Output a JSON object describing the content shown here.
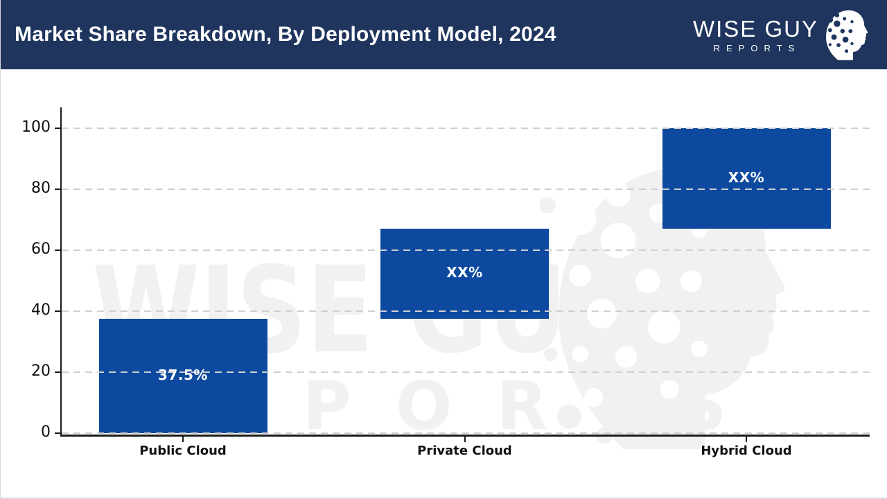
{
  "header": {
    "title": "Market Share Breakdown, By Deployment Model, 2024",
    "logo": {
      "line1": "WISE GUY",
      "line2": "REPORTS"
    }
  },
  "watermark": {
    "line1": "WISE GUY",
    "line2": "REPORTS"
  },
  "chart_data": {
    "type": "bar",
    "subtype": "floating-segment-waterfall",
    "title": "Market Share Breakdown, By Deployment Model, 2024",
    "categories": [
      "Public Cloud",
      "Private Cloud",
      "Hybrid Cloud"
    ],
    "segments": [
      {
        "category": "Public Cloud",
        "start": 0,
        "end": 37.5,
        "label": "37.5%"
      },
      {
        "category": "Private Cloud",
        "start": 37.5,
        "end": 67,
        "label": "XX%"
      },
      {
        "category": "Hybrid Cloud",
        "start": 67,
        "end": 100,
        "label": "XX%"
      }
    ],
    "xlabel": "",
    "ylabel": "",
    "ylim": [
      0,
      100
    ],
    "yticks": [
      0,
      20,
      40,
      60,
      80,
      100
    ],
    "grid": "horizontal-dashed",
    "legend": "none",
    "bar_color": "#0d4a9f",
    "bar_label_color": "#ffffff"
  },
  "colors": {
    "header_bg": "#1f355e",
    "bar": "#0d4a9f",
    "grid": "#cfcfcf",
    "axis": "#1a1a1a",
    "watermark": "#f1f1f2",
    "page_border": "#d9d9d9"
  }
}
